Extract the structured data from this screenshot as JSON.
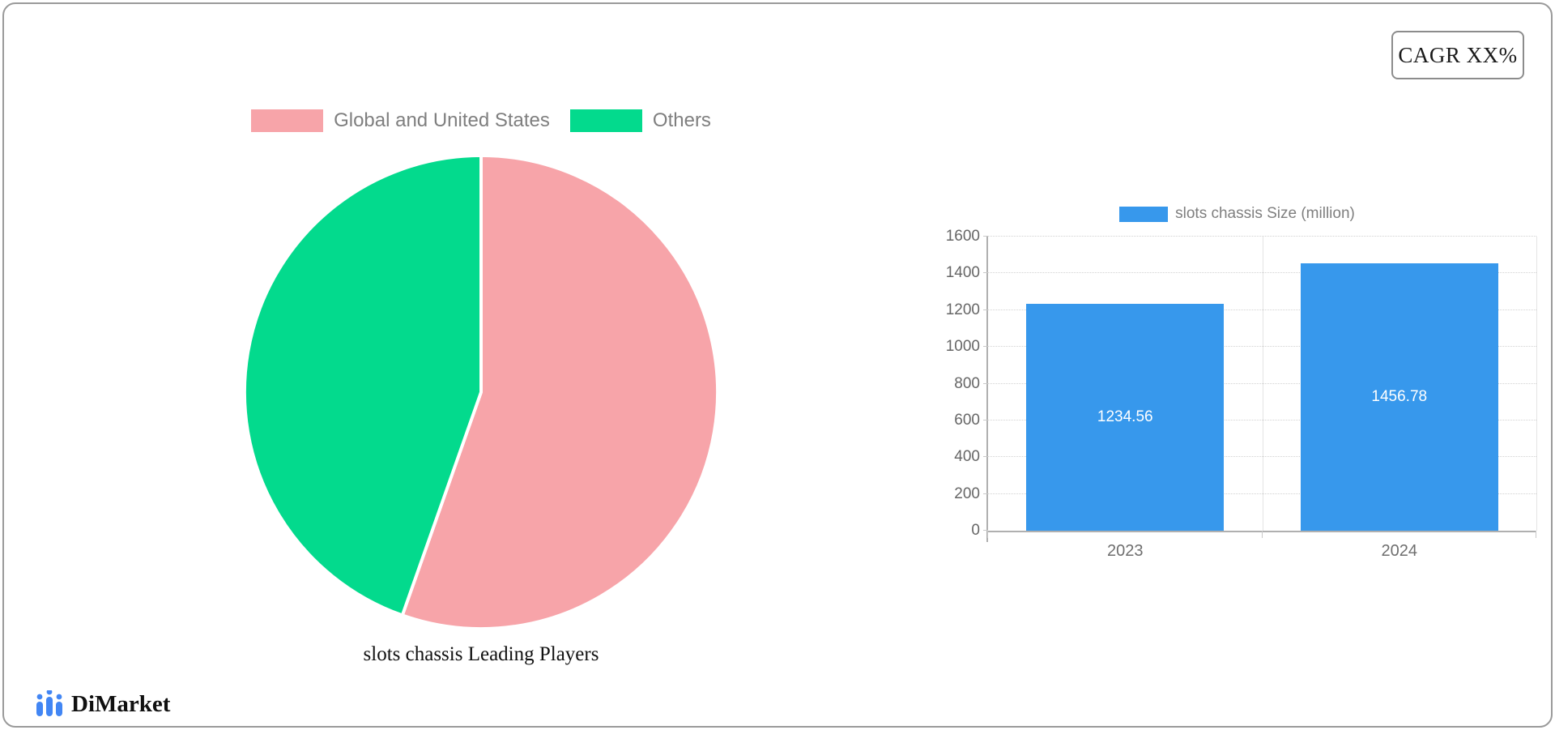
{
  "card": {
    "cagr_label": "CAGR XX%"
  },
  "branding": {
    "logo_text": "DiMarket",
    "logo_icon": "bar-chart-logo-icon",
    "logo_icon_color": "#4286f4"
  },
  "chart_data": [
    {
      "type": "pie",
      "title": "slots chassis Leading Players",
      "labels": [
        "Global and United States",
        "Others"
      ],
      "values": [
        55.4,
        44.6
      ],
      "colors": [
        "#f7a4a9",
        "#03da8d"
      ],
      "legend_position": "top",
      "slice_border_color": "#ffffff",
      "start_angle": "top, clockwise"
    },
    {
      "type": "bar",
      "series_label": "slots chassis Size (million)",
      "categories": [
        "2023",
        "2024"
      ],
      "values": [
        1234.56,
        1456.78
      ],
      "value_labels": [
        "1234.56",
        "1456.78"
      ],
      "bar_color": "#3798ec",
      "ylim": [
        0,
        1600
      ],
      "yticks": [
        0,
        200,
        400,
        600,
        800,
        1000,
        1200,
        1400,
        1600
      ],
      "grid": true,
      "legend_position": "top",
      "value_label_color": "#ffffff"
    }
  ]
}
